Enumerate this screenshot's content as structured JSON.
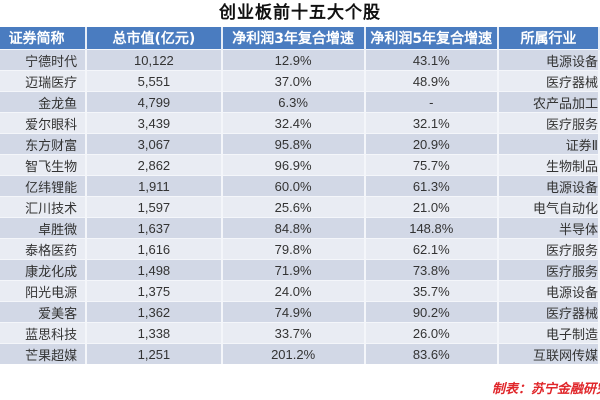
{
  "title": "创业板前十五大个股",
  "table": {
    "headers": [
      "证券简称",
      "总市值(亿元)",
      "净利润3年复合增速",
      "净利润5年复合增速",
      "所属行业"
    ],
    "rows": [
      {
        "name": "宁德时代",
        "market_cap": "10,122",
        "cagr3": "12.9%",
        "cagr5": "43.1%",
        "industry": "电源设备"
      },
      {
        "name": "迈瑞医疗",
        "market_cap": "5,551",
        "cagr3": "37.0%",
        "cagr5": "48.9%",
        "industry": "医疗器械"
      },
      {
        "name": "金龙鱼",
        "market_cap": "4,799",
        "cagr3": "6.3%",
        "cagr5": "-",
        "industry": "农产品加工"
      },
      {
        "name": "爱尔眼科",
        "market_cap": "3,439",
        "cagr3": "32.4%",
        "cagr5": "32.1%",
        "industry": "医疗服务"
      },
      {
        "name": "东方财富",
        "market_cap": "3,067",
        "cagr3": "95.8%",
        "cagr5": "20.9%",
        "industry": "证券Ⅱ"
      },
      {
        "name": "智飞生物",
        "market_cap": "2,862",
        "cagr3": "96.9%",
        "cagr5": "75.7%",
        "industry": "生物制品"
      },
      {
        "name": "亿纬锂能",
        "market_cap": "1,911",
        "cagr3": "60.0%",
        "cagr5": "61.3%",
        "industry": "电源设备"
      },
      {
        "name": "汇川技术",
        "market_cap": "1,597",
        "cagr3": "25.6%",
        "cagr5": "21.0%",
        "industry": "电气自动化"
      },
      {
        "name": "卓胜微",
        "market_cap": "1,637",
        "cagr3": "84.8%",
        "cagr5": "148.8%",
        "industry": "半导体"
      },
      {
        "name": "泰格医药",
        "market_cap": "1,616",
        "cagr3": "79.8%",
        "cagr5": "62.1%",
        "industry": "医疗服务"
      },
      {
        "name": "康龙化成",
        "market_cap": "1,498",
        "cagr3": "71.9%",
        "cagr5": "73.8%",
        "industry": "医疗服务"
      },
      {
        "name": "阳光电源",
        "market_cap": "1,375",
        "cagr3": "24.0%",
        "cagr5": "35.7%",
        "industry": "电源设备"
      },
      {
        "name": "爱美客",
        "market_cap": "1,362",
        "cagr3": "74.9%",
        "cagr5": "90.2%",
        "industry": "医疗器械"
      },
      {
        "name": "蓝思科技",
        "market_cap": "1,338",
        "cagr3": "33.7%",
        "cagr5": "26.0%",
        "industry": "电子制造"
      },
      {
        "name": "芒果超媒",
        "market_cap": "1,251",
        "cagr3": "201.2%",
        "cagr5": "83.6%",
        "industry": "互联网传媒"
      }
    ]
  },
  "source": "制表：苏宁金融研究院"
}
